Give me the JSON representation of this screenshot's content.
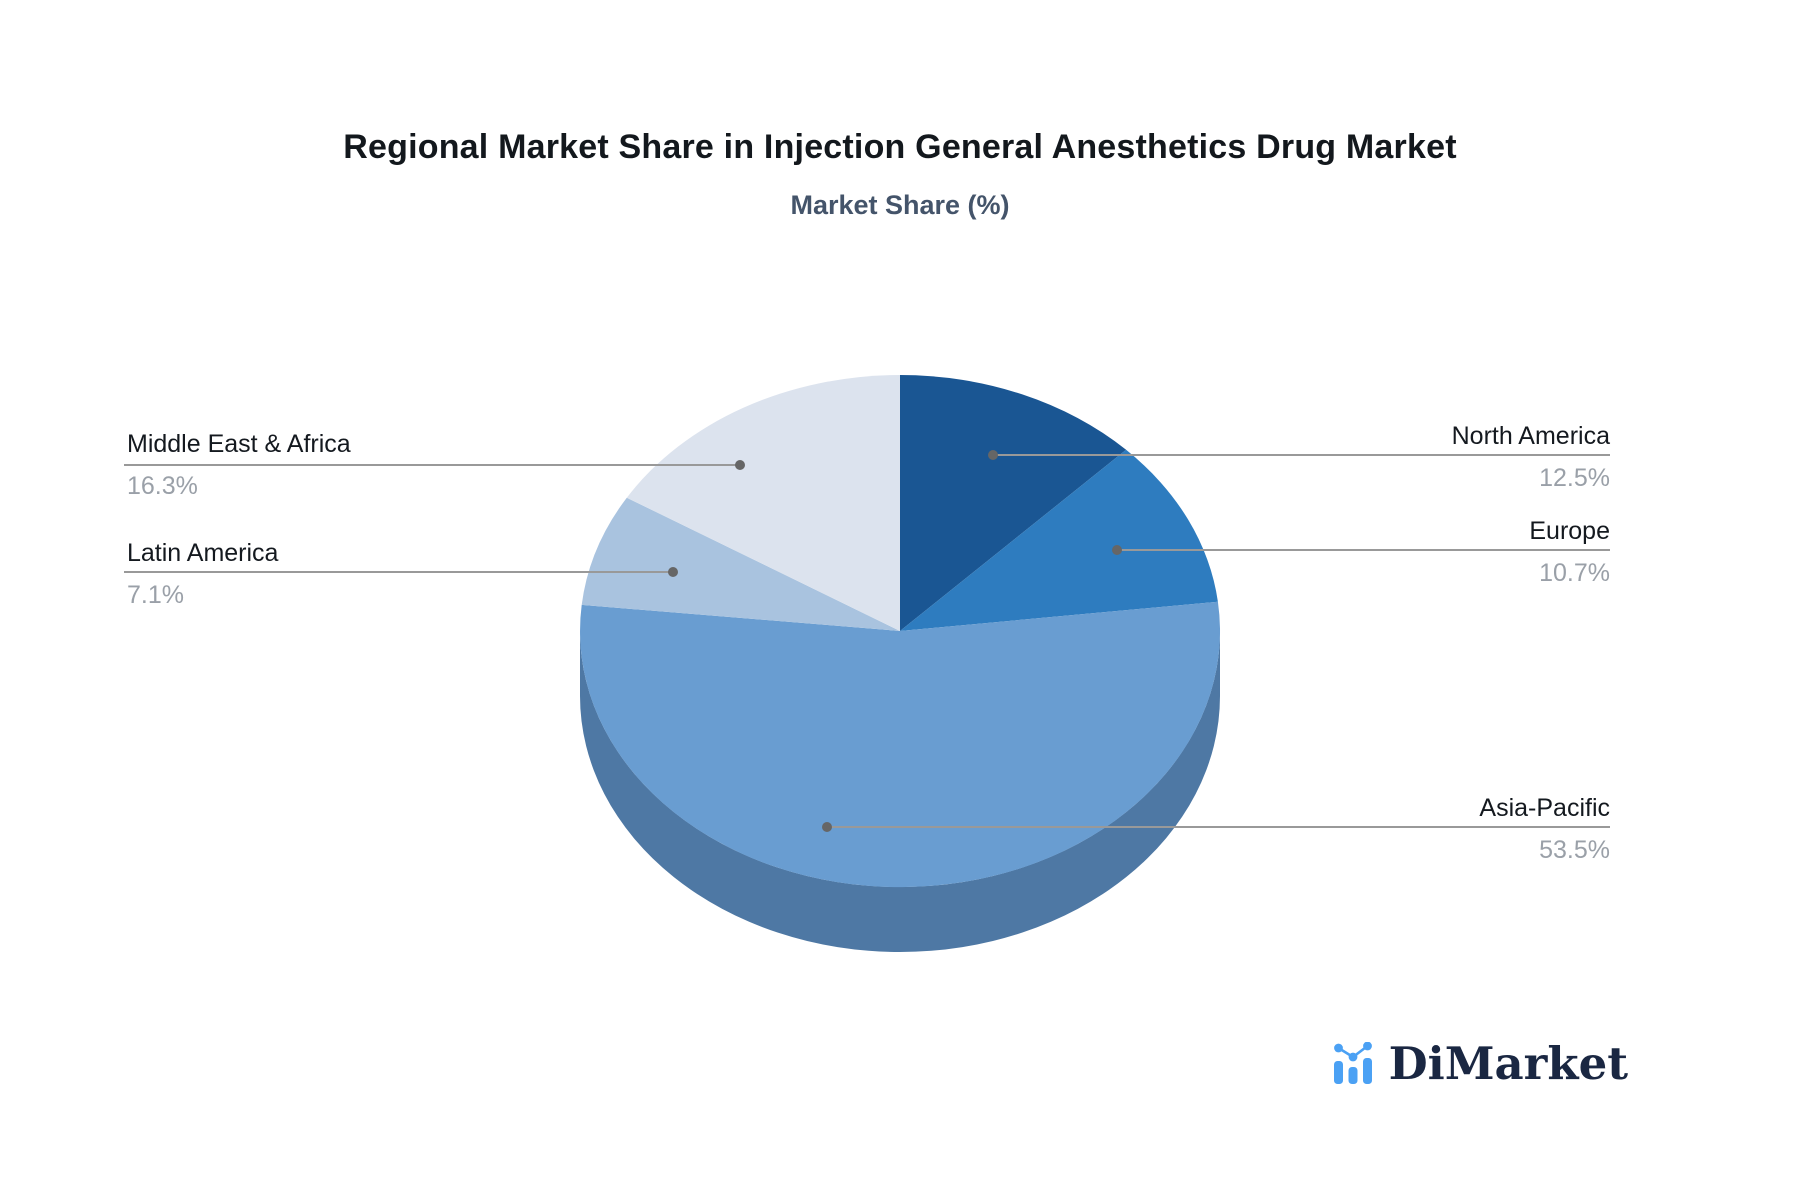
{
  "title": "Regional Market Share in Injection General Anesthetics Drug Market",
  "subtitle": "Market Share (%)",
  "watermark": {
    "brand": "DiMarket",
    "icon": "bar-line-chart-icon",
    "icon_color": "#4BA1F4",
    "text_color": "#1A2742"
  },
  "chart_data": {
    "type": "pie",
    "title": "Regional Market Share in Injection General Anesthetics Drug Market",
    "subtitle": "Market Share (%)",
    "unit": "%",
    "effect": "3d",
    "legend_position": "none",
    "start_angle_deg": 0,
    "direction": "clockwise",
    "slices": [
      {
        "name": "North America",
        "value": 12.5,
        "label": "12.5%",
        "color": "#1A5693",
        "label_side": "right"
      },
      {
        "name": "Europe",
        "value": 10.7,
        "label": "10.7%",
        "color": "#2E7CBF",
        "label_side": "right"
      },
      {
        "name": "Asia-Pacific",
        "value": 53.5,
        "label": "53.5%",
        "color": "#699DD1",
        "side_color": "#4E78A4",
        "label_side": "right"
      },
      {
        "name": "Latin America",
        "value": 7.1,
        "label": "7.1%",
        "color": "#A9C3DF",
        "label_side": "left"
      },
      {
        "name": "Middle East & Africa",
        "value": 16.3,
        "label": "16.3%",
        "color": "#DCE3EE",
        "label_side": "left"
      }
    ],
    "leader_line_color": "#999999",
    "leader_dot_color": "#666666",
    "label_name_color": "#14191F",
    "label_value_color": "#9AA0A8"
  }
}
